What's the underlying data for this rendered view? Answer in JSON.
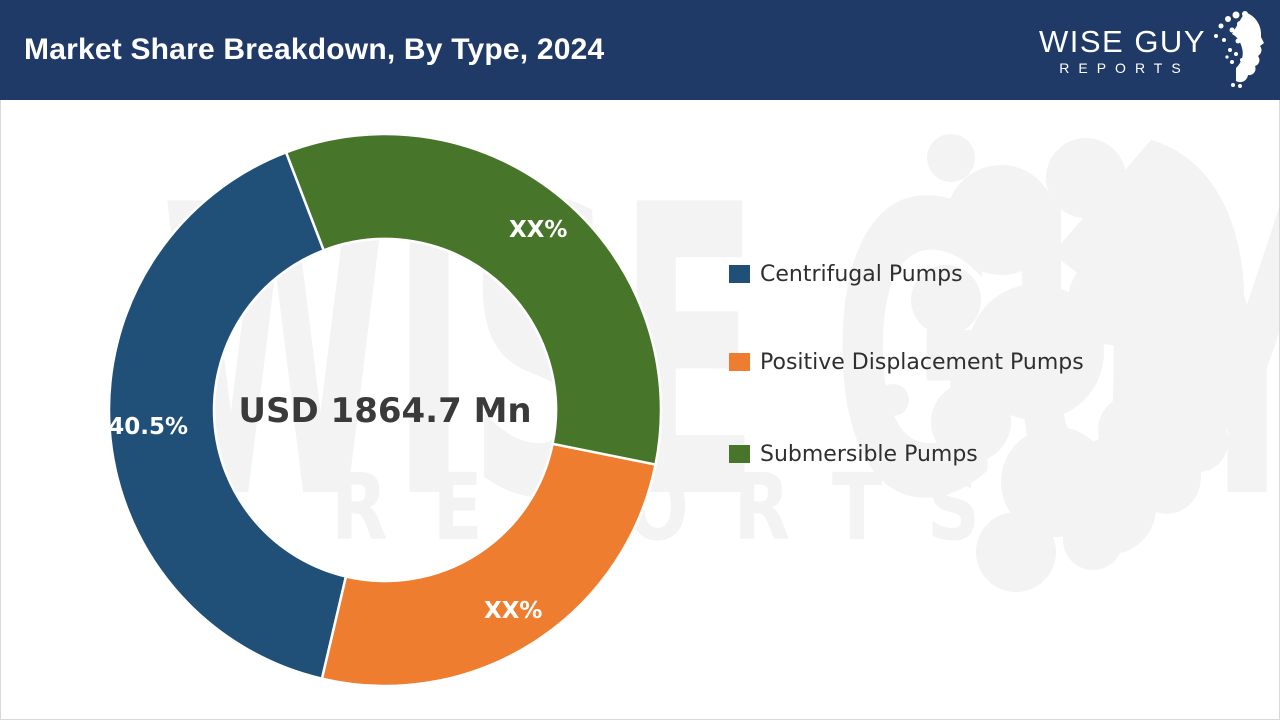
{
  "header": {
    "title": "Market Share Breakdown, By Type, 2024",
    "background_color": "#203A68",
    "logo": {
      "line1": "WISE GUY",
      "line2": "REPORTS"
    }
  },
  "watermark": {
    "line1": "WISE GUY",
    "line2": "REPORTS"
  },
  "chart_data": {
    "type": "donut",
    "title": "Market Share Breakdown, By Type, 2024",
    "center_label": "USD 1864.7 Mn",
    "start_angle_deg": -21,
    "direction": "counterclockwise",
    "donut_hole_ratio": 0.62,
    "legend_position": "right",
    "slice_border_color": "#ffffff",
    "series": [
      {
        "name": "Centrifugal Pumps",
        "value_pct": 40.5,
        "label": "40.5%",
        "color": "#205078"
      },
      {
        "name": "Positive Displacement Pumps",
        "value_pct": 25.5,
        "label": "XX%",
        "color": "#EE7D30"
      },
      {
        "name": "Submersible Pumps",
        "value_pct": 34.0,
        "label": "XX%",
        "color": "#47762A"
      }
    ]
  }
}
